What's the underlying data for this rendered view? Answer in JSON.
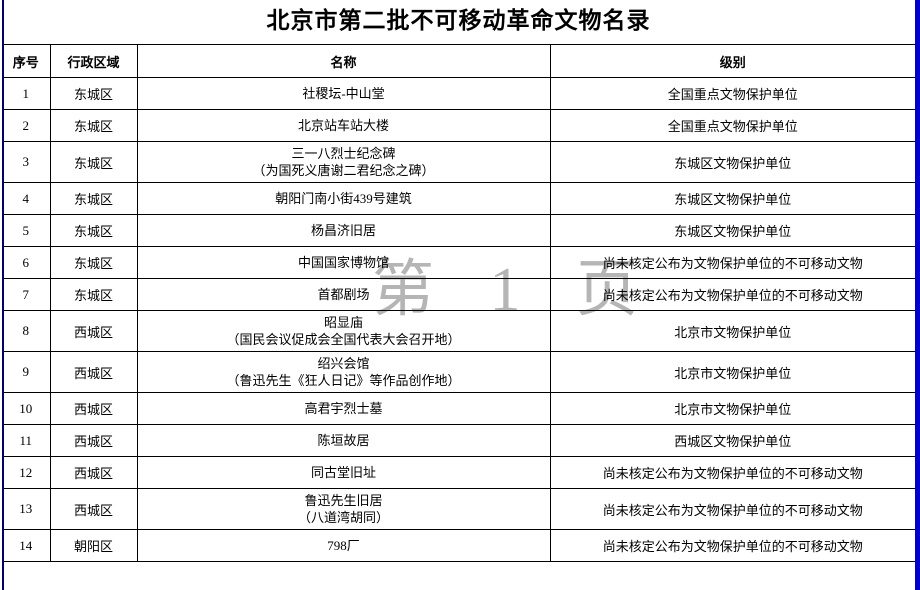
{
  "page": {
    "title": "北京市第二批不可移动革命文物名录",
    "watermark": "第 1 页"
  },
  "colors": {
    "page_edge_left": "#000066",
    "page_edge_right": "#0000CC",
    "grid_line": "#000000",
    "watermark_gray": "#b5b5b5",
    "text": "#000000"
  },
  "table": {
    "headers": [
      "序号",
      "行政区域",
      "名称",
      "级别"
    ],
    "rows": [
      {
        "no": "1",
        "district": "东城区",
        "name": "社稷坛-中山堂",
        "note": "",
        "level": "全国重点文物保护单位"
      },
      {
        "no": "2",
        "district": "东城区",
        "name": "北京站车站大楼",
        "note": "",
        "level": "全国重点文物保护单位"
      },
      {
        "no": "3",
        "district": "东城区",
        "name": "三一八烈士纪念碑",
        "note": "（为国死义唐谢二君纪念之碑）",
        "level": "东城区文物保护单位"
      },
      {
        "no": "4",
        "district": "东城区",
        "name": "朝阳门南小街439号建筑",
        "note": "",
        "level": "东城区文物保护单位"
      },
      {
        "no": "5",
        "district": "东城区",
        "name": "杨昌济旧居",
        "note": "",
        "level": "东城区文物保护单位"
      },
      {
        "no": "6",
        "district": "东城区",
        "name": "中国国家博物馆",
        "note": "",
        "level": "尚未核定公布为文物保护单位的不可移动文物"
      },
      {
        "no": "7",
        "district": "东城区",
        "name": "首都剧场",
        "note": "",
        "level": "尚未核定公布为文物保护单位的不可移动文物"
      },
      {
        "no": "8",
        "district": "西城区",
        "name": "昭显庙",
        "note": "（国民会议促成会全国代表大会召开地）",
        "level": "北京市文物保护单位"
      },
      {
        "no": "9",
        "district": "西城区",
        "name": "绍兴会馆",
        "note": "（鲁迅先生《狂人日记》等作品创作地）",
        "level": "北京市文物保护单位"
      },
      {
        "no": "10",
        "district": "西城区",
        "name": "高君宇烈士墓",
        "note": "",
        "level": "北京市文物保护单位"
      },
      {
        "no": "11",
        "district": "西城区",
        "name": "陈垣故居",
        "note": "",
        "level": "西城区文物保护单位"
      },
      {
        "no": "12",
        "district": "西城区",
        "name": "同古堂旧址",
        "note": "",
        "level": "尚未核定公布为文物保护单位的不可移动文物"
      },
      {
        "no": "13",
        "district": "西城区",
        "name": "鲁迅先生旧居",
        "note": "（八道湾胡同）",
        "level": "尚未核定公布为文物保护单位的不可移动文物"
      },
      {
        "no": "14",
        "district": "朝阳区",
        "name": "798厂",
        "note": "",
        "level": "尚未核定公布为文物保护单位的不可移动文物"
      }
    ]
  }
}
